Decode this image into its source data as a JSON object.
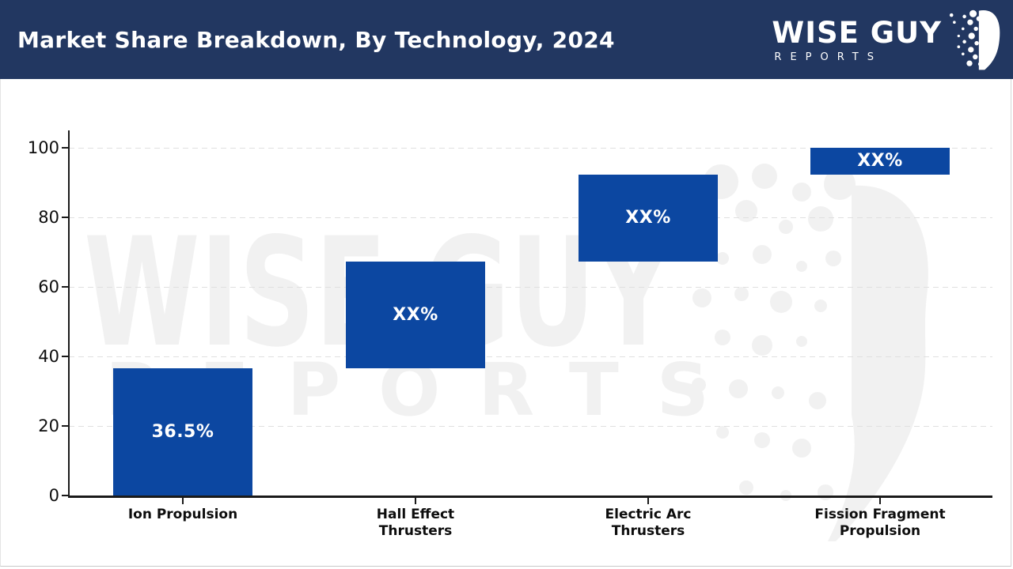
{
  "header": {
    "title": "Market Share Breakdown, By Technology, 2024"
  },
  "logo": {
    "primary": "WISE GUY",
    "secondary": "REPORTS"
  },
  "watermark": {
    "primary": "WISE GUY",
    "secondary": "REPORTS"
  },
  "colors": {
    "header_background": "#223761",
    "bar": "#0c47a1",
    "bar_label": "#ffffff",
    "grid": "#e0e0e0",
    "axis": "#1a1a1a",
    "watermark": "#f1f1f1"
  },
  "chart_data": {
    "type": "bar",
    "subtype": "waterfall",
    "title": "Market Share Breakdown, By Technology, 2024",
    "xlabel": "",
    "ylabel": "",
    "ylim": [
      0,
      100
    ],
    "yticks": [
      0,
      20,
      40,
      60,
      80,
      100
    ],
    "grid": "horizontal-dashed",
    "legend": "none",
    "categories": [
      "Ion Propulsion",
      "Hall Effect\nThrusters",
      "Electric Arc\nThrusters",
      "Fission Fragment\nPropulsion"
    ],
    "segments": [
      {
        "category": "Ion Propulsion",
        "start": 0,
        "end": 36.5,
        "label": "36.5%"
      },
      {
        "category": "Hall Effect Thrusters",
        "start": 36.5,
        "end": 67.3,
        "label": "XX%"
      },
      {
        "category": "Electric Arc Thrusters",
        "start": 67.3,
        "end": 92.3,
        "label": "XX%"
      },
      {
        "category": "Fission Fragment Propulsion",
        "start": 92.3,
        "end": 100,
        "label": "XX%"
      }
    ]
  }
}
